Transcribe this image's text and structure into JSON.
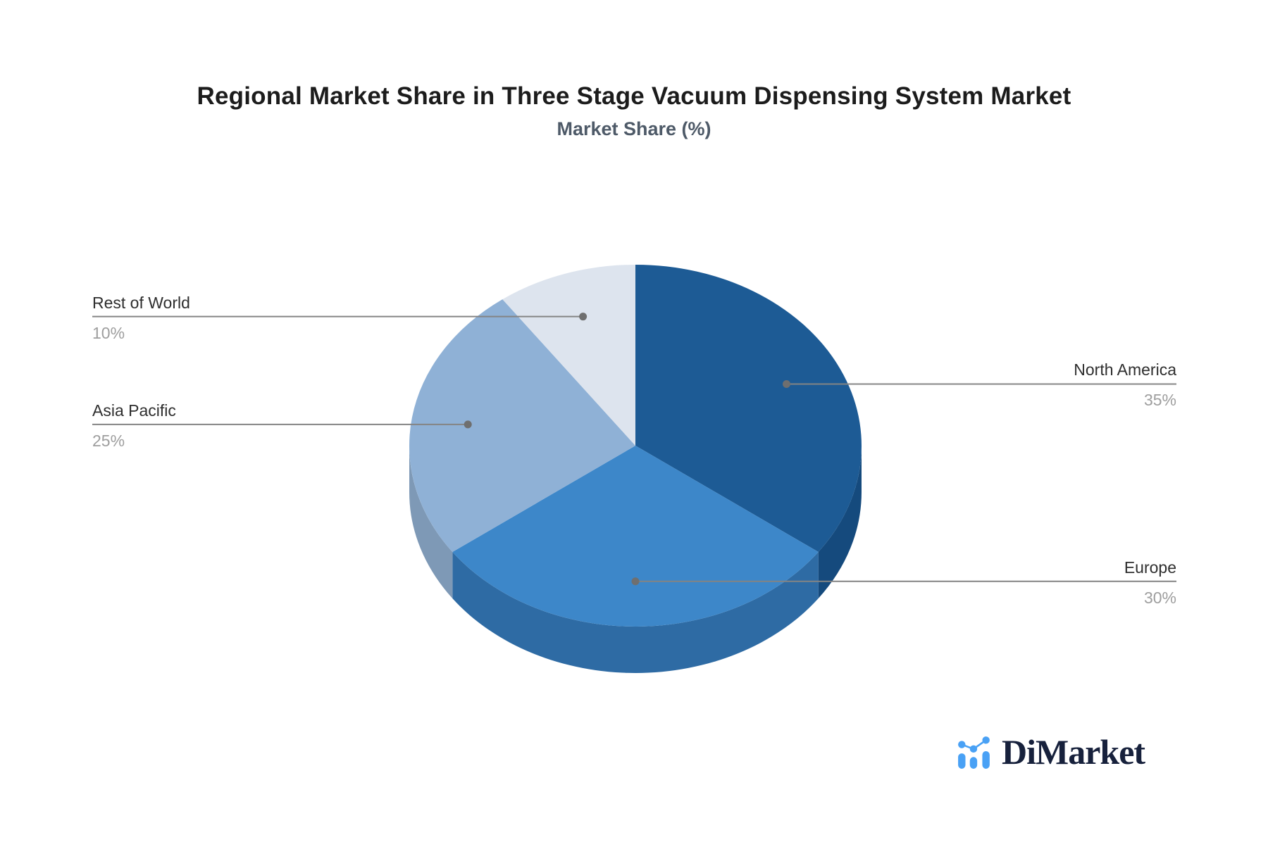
{
  "page": {
    "background": "#ffffff"
  },
  "header": {
    "title": "Regional Market Share in Three Stage Vacuum Dispensing System Market",
    "subtitle": "Market Share (%)"
  },
  "chart_data": {
    "type": "pie",
    "style": "3d",
    "title": "Regional Market Share in Three Stage Vacuum Dispensing System Market",
    "subtitle": "Market Share (%)",
    "unit": "percent",
    "total": 100,
    "start_position": "12-o-clock-clockwise",
    "legend_position": "callout-labels",
    "segments": [
      {
        "label": "North America",
        "value": 35,
        "display": "35%",
        "color": "#1d5b95",
        "side_color": "#154a7d",
        "label_side": "right"
      },
      {
        "label": "Europe",
        "value": 30,
        "display": "30%",
        "color": "#3d87c9",
        "side_color": "#2e6ba4",
        "label_side": "right"
      },
      {
        "label": "Asia Pacific",
        "value": 25,
        "display": "25%",
        "color": "#8fb1d6",
        "side_color": "#7e99b6",
        "label_side": "left"
      },
      {
        "label": "Rest of World",
        "value": 10,
        "display": "10%",
        "color": "#dde4ee",
        "side_color": "#c9d4e4",
        "label_side": "left"
      }
    ],
    "leader_line_color": "#848484",
    "leader_dot_color": "#6f6f6f"
  },
  "branding": {
    "logo_text": "DiMarket",
    "logo_icon": "bar-chart-trend-icon",
    "icon_color": "#49a1f5",
    "text_color": "#17213c"
  },
  "text_colors": {
    "title": "#1c1c1c",
    "subtitle": "#4e5a68",
    "callout_label": "#2e2e2e",
    "callout_value": "#9e9e9e"
  }
}
